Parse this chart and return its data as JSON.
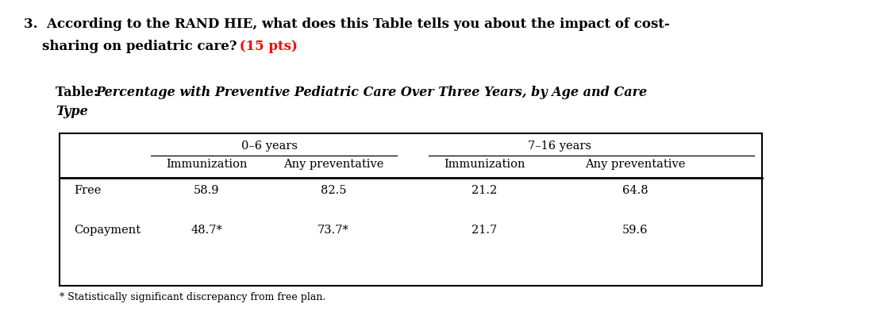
{
  "q_line1": "3.  According to the RAND HIE, what does this Table tells you about the impact of cost-",
  "q_line2_before_pts": "    sharing on pediatric care?",
  "q_pts": " (15 pts)",
  "table_prefix": "Table: ",
  "table_italic1": "Percentage with Preventive Pediatric Care Over Three Years, by Age and Care",
  "table_italic2": "Type",
  "col_group1": "0–6 years",
  "col_group2": "7–16 years",
  "col_sub1": "Immunization",
  "col_sub2": "Any preventative",
  "col_sub3": "Immunization",
  "col_sub4": "Any preventative",
  "row1_label": "Free",
  "row1_vals": [
    "58.9",
    "82.5",
    "21.2",
    "64.8"
  ],
  "row2_label": "Copayment",
  "row2_vals": [
    "48.7*",
    "73.7*",
    "21.7",
    "59.6"
  ],
  "footnote": "* Statistically significant discrepancy from free plan.",
  "bg_color": "#ffffff",
  "text_color": "#000000",
  "pts_color": "#ff0000",
  "fig_width": 11.2,
  "fig_height": 4.12,
  "dpi": 100
}
